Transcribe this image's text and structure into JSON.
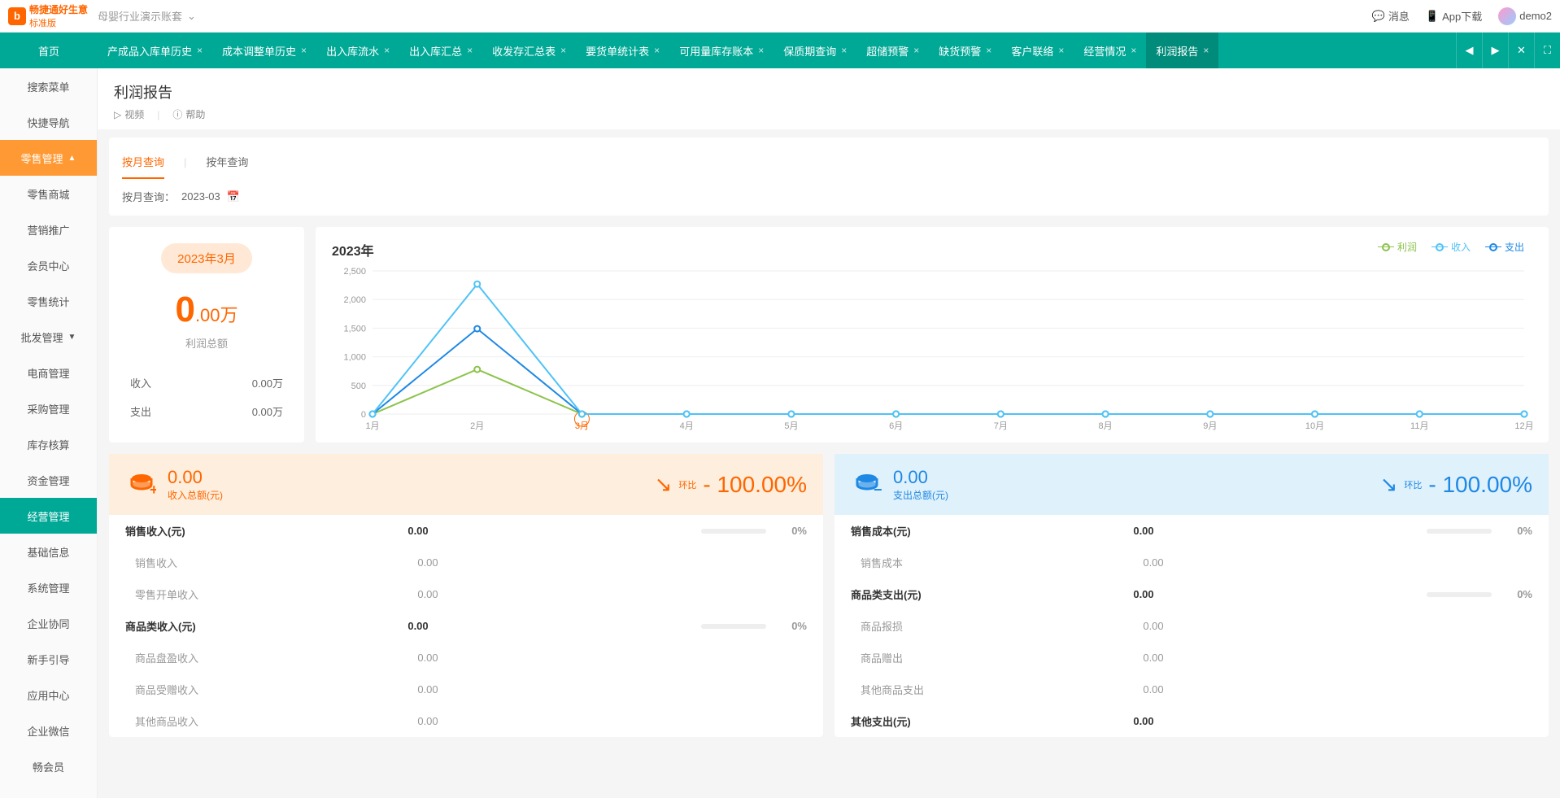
{
  "brand": {
    "name": "畅捷通好生意",
    "edition": "标准版"
  },
  "account_select": "母婴行业演示账套",
  "topbar": {
    "msg": "消息",
    "app_download": "App下载",
    "user": "demo2"
  },
  "tabs": {
    "home": "首页",
    "items": [
      "产成品入库单历史",
      "成本调整单历史",
      "出入库流水",
      "出入库汇总",
      "收发存汇总表",
      "要货单统计表",
      "可用量库存账本",
      "保质期查询",
      "超储预警",
      "缺货预警",
      "客户联络",
      "经营情况",
      "利润报告"
    ],
    "active_index": 12
  },
  "sidebar": {
    "items": [
      {
        "label": "搜索菜单",
        "kind": "plain"
      },
      {
        "label": "快捷导航",
        "kind": "plain"
      },
      {
        "label": "零售管理",
        "kind": "orange",
        "caret": "▲"
      },
      {
        "label": "零售商城",
        "kind": "plain"
      },
      {
        "label": "营销推广",
        "kind": "plain"
      },
      {
        "label": "会员中心",
        "kind": "plain"
      },
      {
        "label": "零售统计",
        "kind": "plain"
      },
      {
        "label": "批发管理",
        "kind": "plain",
        "caret": "▼"
      },
      {
        "label": "电商管理",
        "kind": "plain"
      },
      {
        "label": "采购管理",
        "kind": "plain"
      },
      {
        "label": "库存核算",
        "kind": "plain"
      },
      {
        "label": "资金管理",
        "kind": "plain"
      },
      {
        "label": "经营管理",
        "kind": "teal"
      },
      {
        "label": "基础信息",
        "kind": "plain"
      },
      {
        "label": "系统管理",
        "kind": "plain"
      },
      {
        "label": "企业协同",
        "kind": "plain"
      },
      {
        "label": "新手引导",
        "kind": "plain"
      },
      {
        "label": "应用中心",
        "kind": "plain"
      },
      {
        "label": "企业微信",
        "kind": "plain"
      },
      {
        "label": "畅会员",
        "kind": "plain"
      }
    ]
  },
  "page": {
    "title": "利润报告",
    "video": "视频",
    "help": "帮助"
  },
  "query": {
    "tab_month": "按月查询",
    "tab_year": "按年查询",
    "active": "month",
    "label": "按月查询：",
    "value": "2023-03"
  },
  "summary": {
    "pill": "2023年3月",
    "big": "0",
    "big_dec": ".00",
    "big_unit": "万",
    "sub": "利润总额",
    "income_label": "收入",
    "income_val": "0.00万",
    "expense_label": "支出",
    "expense_val": "0.00万"
  },
  "chart": {
    "title": "2023年",
    "legend": {
      "profit": "利润",
      "income": "收入",
      "expense": "支出"
    },
    "colors": {
      "profit": "#8bc34a",
      "income": "#4fc3f7",
      "expense": "#1e88e5",
      "grid": "#eeeeee",
      "axis": "#cccccc",
      "tick_text": "#999999",
      "highlight": "#ff6600"
    },
    "ylim": [
      0,
      2500
    ],
    "ytick_step": 500,
    "yticks": [
      "0",
      "500",
      "1,000",
      "1,500",
      "2,000",
      "2,500"
    ],
    "months": [
      "1月",
      "2月",
      "3月",
      "4月",
      "5月",
      "6月",
      "7月",
      "8月",
      "9月",
      "10月",
      "11月",
      "12月"
    ],
    "highlight_month_index": 2,
    "series": {
      "profit": [
        0,
        780,
        0,
        0,
        0,
        0,
        0,
        0,
        0,
        0,
        0,
        0
      ],
      "income": [
        0,
        2270,
        0,
        0,
        0,
        0,
        0,
        0,
        0,
        0,
        0,
        0
      ],
      "expense": [
        0,
        1490,
        0,
        0,
        0,
        0,
        0,
        0,
        0,
        0,
        0,
        0
      ]
    }
  },
  "income_card": {
    "value": "0.00",
    "sub": "收入总额(元)",
    "ring_label": "环比",
    "pct": "- 100.00%",
    "rows": [
      {
        "type": "group",
        "name": "销售收入(元)",
        "val": "0.00",
        "pct": "0%"
      },
      {
        "type": "item",
        "name": "销售收入",
        "val": "0.00"
      },
      {
        "type": "item",
        "name": "零售开单收入",
        "val": "0.00"
      },
      {
        "type": "group",
        "name": "商品类收入(元)",
        "val": "0.00",
        "pct": "0%"
      },
      {
        "type": "item",
        "name": "商品盘盈收入",
        "val": "0.00"
      },
      {
        "type": "item",
        "name": "商品受赠收入",
        "val": "0.00"
      },
      {
        "type": "item",
        "name": "其他商品收入",
        "val": "0.00"
      }
    ]
  },
  "expense_card": {
    "value": "0.00",
    "sub": "支出总额(元)",
    "ring_label": "环比",
    "pct": "- 100.00%",
    "rows": [
      {
        "type": "group",
        "name": "销售成本(元)",
        "val": "0.00",
        "pct": "0%"
      },
      {
        "type": "item",
        "name": "销售成本",
        "val": "0.00"
      },
      {
        "type": "group",
        "name": "商品类支出(元)",
        "val": "0.00",
        "pct": "0%"
      },
      {
        "type": "item",
        "name": "商品报损",
        "val": "0.00"
      },
      {
        "type": "item",
        "name": "商品赠出",
        "val": "0.00"
      },
      {
        "type": "item",
        "name": "其他商品支出",
        "val": "0.00"
      },
      {
        "type": "group",
        "name": "其他支出(元)",
        "val": "0.00"
      }
    ]
  }
}
